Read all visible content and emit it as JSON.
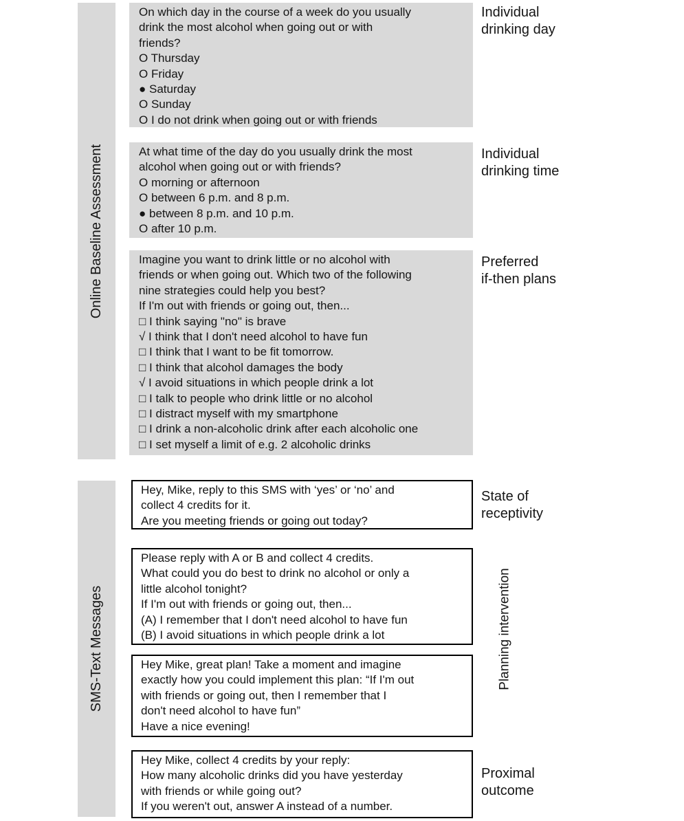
{
  "colors": {
    "panel_gray": "#d9d9d9",
    "box_border": "#000000",
    "text": "#151515",
    "background": "#ffffff"
  },
  "baseline_section": {
    "sidebar_label": "Online Baseline Assessment",
    "boxes": [
      {
        "id": "individual-drinking-day",
        "lines": [
          "On which day in the course of a week do you usually",
          "drink the most alcohol when going out or with",
          "friends?",
          "O Thursday",
          "O Friday",
          "● Saturday",
          "O Sunday",
          "O I do not drink when going out or with friends"
        ]
      },
      {
        "id": "individual-drinking-time",
        "lines": [
          "At what time of the day do you usually drink the most",
          "alcohol when going out or with friends?",
          "O morning or afternoon",
          "O between 6 p.m. and 8 p.m.",
          "● between 8 p.m. and 10 p.m.",
          "O after 10 p.m."
        ]
      },
      {
        "id": "preferred-if-then-plans",
        "lines": [
          "Imagine you want to drink little or no alcohol with",
          "friends or when going out. Which two of the following",
          "nine strategies could help you best?",
          "If I'm out with friends or going out, then...",
          "□ I think saying \"no\" is brave",
          "√ I think that I don't need alcohol to have fun",
          "□ I think that I want to be fit tomorrow.",
          "□ I think that alcohol damages the body",
          "√ I avoid situations in which people drink a lot",
          "□ I talk to people who drink little or no alcohol",
          "□ I distract myself with my smartphone",
          "□ I drink a non-alcoholic drink after each alcoholic one",
          "□ I set myself a limit of e.g. 2 alcoholic drinks"
        ]
      }
    ]
  },
  "sms_section": {
    "sidebar_label": "SMS-Text Messages",
    "messages": [
      {
        "id": "state-of-receptivity",
        "lines": [
          "Hey, Mike, reply to this SMS with ‘yes’ or ‘no’ and",
          "collect 4 credits for it.",
          "Are you meeting friends or going out today?"
        ]
      },
      {
        "id": "planning-intervention-choice",
        "lines": [
          "Please reply with A or B and collect 4 credits.",
          "What could you do best to drink no alcohol or only a",
          "little alcohol tonight?",
          "If I'm out with friends or going out, then...",
          "(A) I remember that I don't need alcohol to have fun",
          "(B) I avoid situations in which people drink a lot"
        ]
      },
      {
        "id": "planning-intervention-confirmation",
        "lines": [
          "Hey Mike, great plan! Take a moment and imagine",
          "exactly how you could implement this plan: “If I'm out",
          "with friends or going out, then I remember that I",
          "don't need alcohol to have fun”",
          "Have a nice evening!"
        ]
      },
      {
        "id": "proximal-outcome",
        "lines": [
          "Hey Mike, collect 4 credits by your reply:",
          "How many alcoholic drinks did you have yesterday",
          "with friends or while going out?",
          "If you weren't out, answer A instead of a number."
        ]
      }
    ]
  },
  "annotations": {
    "drinking_day": [
      "Individual",
      "drinking day"
    ],
    "drinking_time": [
      "Individual",
      "drinking time"
    ],
    "if_then_plans": [
      "Preferred",
      "if-then plans"
    ],
    "receptivity": [
      "State of",
      "receptivity"
    ],
    "planning_intervention": "Planning intervention",
    "proximal_outcome": [
      "Proximal",
      "outcome"
    ]
  }
}
